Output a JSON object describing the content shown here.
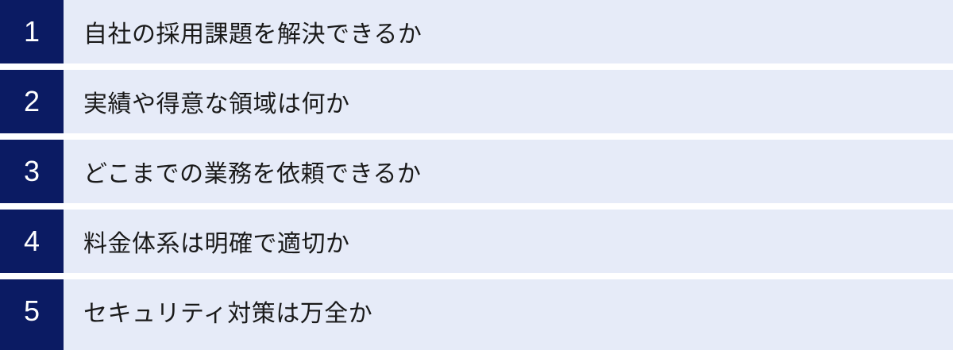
{
  "list": {
    "items": [
      {
        "number": "1",
        "label": "自社の採用課題を解決できるか"
      },
      {
        "number": "2",
        "label": "実績や得意な領域は何か"
      },
      {
        "number": "3",
        "label": "どこまでの業務を依頼できるか"
      },
      {
        "number": "4",
        "label": "料金体系は明確で適切か"
      },
      {
        "number": "5",
        "label": "セキュリティ対策は万全か"
      }
    ]
  },
  "colors": {
    "badge_background": "#0b1b63",
    "badge_text": "#ffffff",
    "bar_background": "#e6ebf8",
    "item_text": "#1a1a1a",
    "page_background": "#ffffff"
  }
}
